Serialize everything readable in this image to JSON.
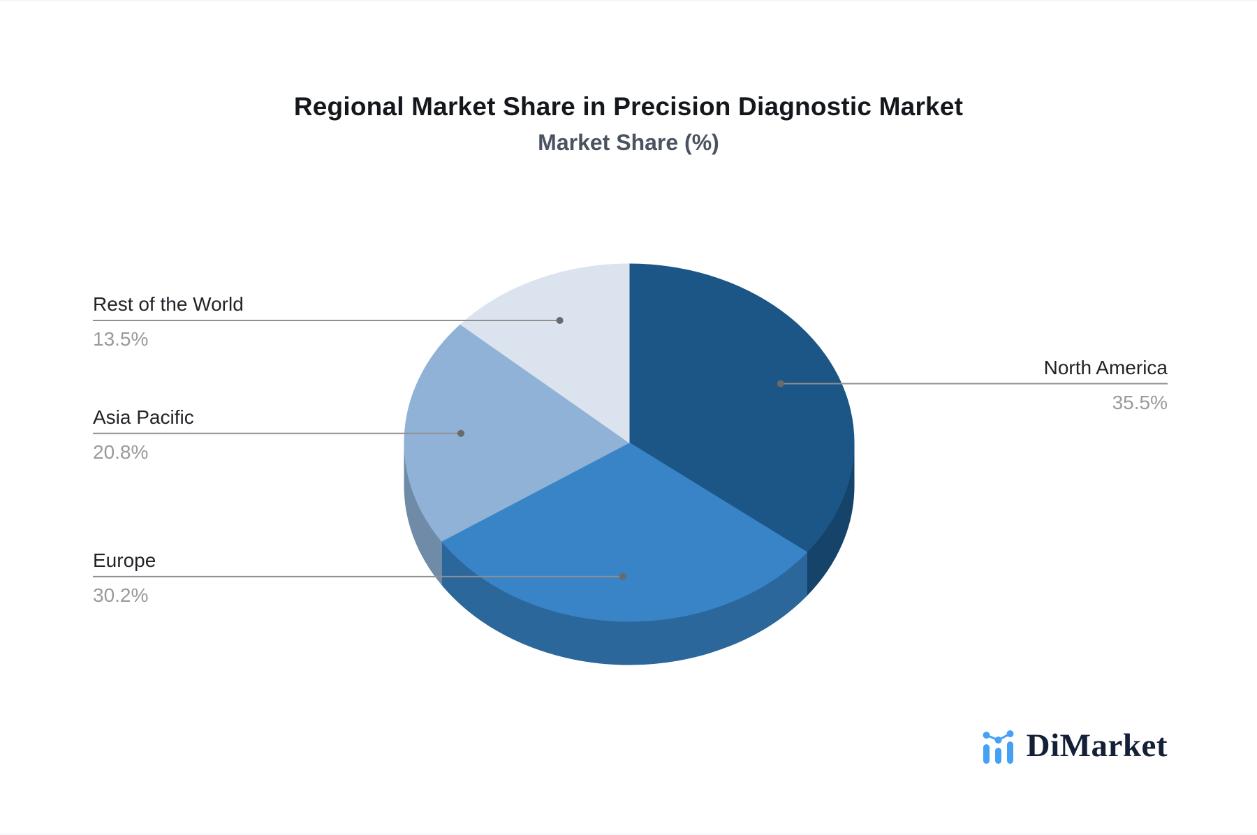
{
  "header": {
    "title": "Regional Market Share in Precision Diagnostic Market",
    "subtitle": "Market Share (%)"
  },
  "chart_data": {
    "type": "pie",
    "style": "3d-extruded",
    "title": "Regional Market Share in Precision Diagnostic Market",
    "subtitle": "Market Share (%)",
    "unit": "%",
    "total": 100,
    "start_angle": "12-oclock",
    "clockwise": true,
    "labels_style": "callout-lines",
    "slices": [
      {
        "label": "North America",
        "value": 35.5,
        "display": "35.5%",
        "color": "#1b5687",
        "callout_side": "right"
      },
      {
        "label": "Europe",
        "value": 30.2,
        "display": "30.2%",
        "color": "#3884c7",
        "callout_side": "left"
      },
      {
        "label": "Asia Pacific",
        "value": 20.8,
        "display": "20.8%",
        "color": "#90b2d6",
        "callout_side": "left"
      },
      {
        "label": "Rest of the World",
        "value": 13.5,
        "display": "13.5%",
        "color": "#dbe3ee",
        "callout_side": "left"
      }
    ],
    "callout_line_color": "#8f8f8f",
    "callout_dot_color": "#6a6a6a",
    "label_color": "#1f2328",
    "value_color": "#9a9a9a"
  },
  "branding": {
    "logo_text": "DiMarket",
    "logo_icon": "bar-line-chart-icon",
    "text_color": "#142038",
    "accent_color": "#45a1f4"
  }
}
